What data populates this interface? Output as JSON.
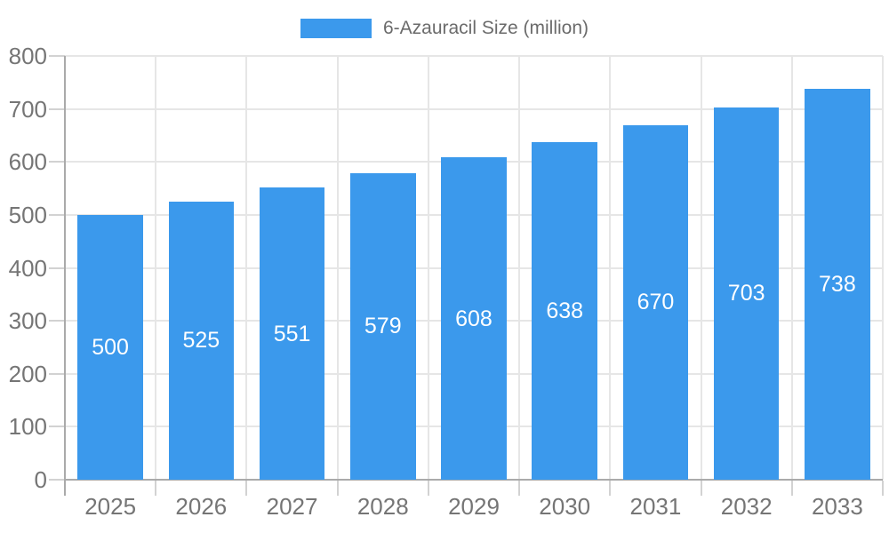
{
  "legend": {
    "label": "6-Azauracil Size (million)"
  },
  "chart_data": {
    "type": "bar",
    "title": "",
    "categories": [
      "2025",
      "2026",
      "2027",
      "2028",
      "2029",
      "2030",
      "2031",
      "2032",
      "2033"
    ],
    "series": [
      {
        "name": "6-Azauracil Size (million)",
        "values": [
          500,
          525,
          551,
          579,
          608,
          638,
          670,
          703,
          738
        ]
      }
    ],
    "value_labels": [
      "500",
      "525",
      "551",
      "579",
      "608",
      "638",
      "670",
      "703",
      "738"
    ],
    "xlabel": "",
    "ylabel": "",
    "ylim": [
      0,
      800
    ],
    "yticks": [
      0,
      100,
      200,
      300,
      400,
      500,
      600,
      700,
      800
    ],
    "grid": true,
    "legend_position": "top",
    "colors": {
      "bar": "#3b99ec",
      "gridline": "#e6e6e6",
      "axis_line": "#aaaaaa",
      "tick": "#d2d2d2",
      "axis_label": "#757575",
      "legend_text": "#6b6b6b",
      "value_label": "#ffffff"
    }
  }
}
